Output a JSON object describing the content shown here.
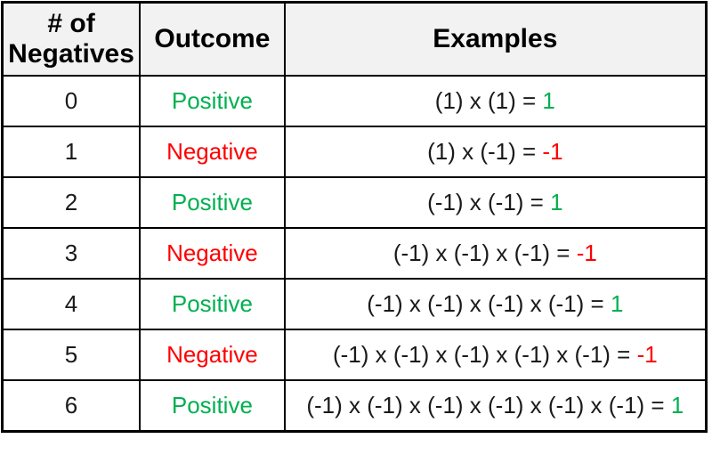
{
  "chart_data": {
    "type": "table",
    "columns": [
      "# of Negatives",
      "Outcome",
      "Examples"
    ],
    "rows": [
      [
        "0",
        "Positive",
        "(1) x (1) = 1"
      ],
      [
        "1",
        "Negative",
        "(1) x (-1) = -1"
      ],
      [
        "2",
        "Positive",
        "(-1) x (-1) = 1"
      ],
      [
        "3",
        "Negative",
        "(-1) x (-1) x (-1) = -1"
      ],
      [
        "4",
        "Positive",
        "(-1) x (-1) x (-1) x (-1) = 1"
      ],
      [
        "5",
        "Negative",
        "(-1) x (-1) x (-1) x (-1) x (-1) = -1"
      ],
      [
        "6",
        "Positive",
        "(-1) x (-1) x (-1) x (-1) x (-1) x (-1) = 1"
      ]
    ],
    "legend_position": "none",
    "grid": true
  },
  "colors": {
    "positive": "#00B050",
    "negative": "#FF0000",
    "header_bg": "#F2F2F2",
    "border": "#000000"
  },
  "headers": {
    "negatives": "# of Negatives",
    "outcome": "Outcome",
    "examples": "Examples"
  },
  "rows": [
    {
      "negatives": "0",
      "outcome": "Positive",
      "expr": "(1) x (1) = ",
      "result": "1",
      "color": "#00B050"
    },
    {
      "negatives": "1",
      "outcome": "Negative",
      "expr": "(1) x (-1) = ",
      "result": "-1",
      "color": "#FF0000"
    },
    {
      "negatives": "2",
      "outcome": "Positive",
      "expr": "(-1) x (-1) = ",
      "result": "1",
      "color": "#00B050"
    },
    {
      "negatives": "3",
      "outcome": "Negative",
      "expr": "(-1) x (-1) x (-1) = ",
      "result": "-1",
      "color": "#FF0000"
    },
    {
      "negatives": "4",
      "outcome": "Positive",
      "expr": "(-1) x (-1) x (-1) x (-1) = ",
      "result": "1",
      "color": "#00B050"
    },
    {
      "negatives": "5",
      "outcome": "Negative",
      "expr": "(-1) x (-1) x (-1) x (-1) x (-1) = ",
      "result": "-1",
      "color": "#FF0000"
    },
    {
      "negatives": "6",
      "outcome": "Positive",
      "expr": "(-1) x (-1) x (-1) x (-1) x (-1) x (-1) = ",
      "result": "1",
      "color": "#00B050"
    }
  ]
}
